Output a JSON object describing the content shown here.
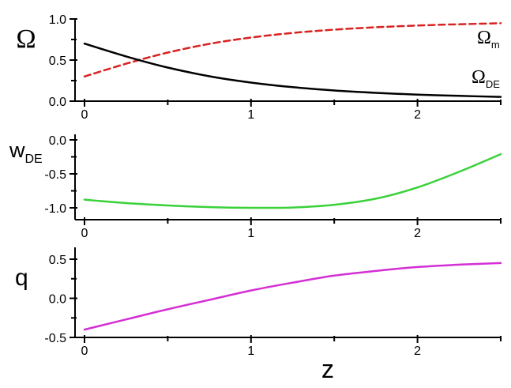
{
  "figure": {
    "background": "#ffffff",
    "axis_color": "#000000"
  },
  "xlabel": "z",
  "chart_data": [
    {
      "type": "line",
      "panel": "density-parameters",
      "ylabel": "Ω",
      "x": [
        0,
        0.25,
        0.5,
        0.75,
        1,
        1.25,
        1.5,
        1.75,
        2,
        2.25,
        2.5
      ],
      "series": [
        {
          "name": "Omega_m",
          "label_main": "Ω",
          "label_sub": "m",
          "color": "#d92121",
          "dash": "8 5",
          "values": [
            0.3,
            0.456,
            0.591,
            0.697,
            0.774,
            0.83,
            0.87,
            0.899,
            0.92,
            0.936,
            0.948
          ]
        },
        {
          "name": "Omega_DE",
          "label_main": "Ω",
          "label_sub": "DE",
          "color": "#000000",
          "dash": "",
          "values": [
            0.7,
            0.544,
            0.409,
            0.303,
            0.226,
            0.17,
            0.13,
            0.101,
            0.08,
            0.064,
            0.052
          ]
        }
      ],
      "ylim": [
        0,
        1
      ],
      "yticks": {
        "major": [
          0,
          0.5,
          1
        ],
        "labels": [
          "0.0",
          "0.5",
          "1.0"
        ],
        "minor": [
          0.25,
          0.75
        ]
      },
      "xticks": {
        "major": [
          0,
          1,
          2
        ],
        "labels": [
          "0",
          "1",
          "2"
        ],
        "minor": [
          0.5,
          1.5,
          2.5
        ]
      },
      "xlim": [
        0,
        2.5
      ],
      "grid": false,
      "legend": "inline annotations right"
    },
    {
      "type": "line",
      "panel": "equation-of-state",
      "ylabel_main": "w",
      "ylabel_sub": "DE",
      "x": [
        0,
        0.25,
        0.5,
        0.75,
        1,
        1.25,
        1.5,
        1.75,
        2,
        2.25,
        2.5
      ],
      "series": [
        {
          "name": "w_DE",
          "color": "#3ad13a",
          "dash": "",
          "values": [
            -0.88,
            -0.93,
            -0.965,
            -0.99,
            -1.0,
            -0.995,
            -0.955,
            -0.865,
            -0.7,
            -0.47,
            -0.21
          ]
        }
      ],
      "ylim": [
        -1.17,
        0.08
      ],
      "yticks": {
        "major": [
          0,
          -0.5,
          -1
        ],
        "labels": [
          "0.0",
          "-0.5",
          "-1.0"
        ],
        "minor": [
          -0.25,
          -0.75
        ]
      },
      "xticks": {
        "major": [
          0,
          1,
          2
        ],
        "labels": [
          "0",
          "1",
          "2"
        ],
        "minor": [
          0.5,
          1.5,
          2.5
        ]
      },
      "xlim": [
        0,
        2.5
      ],
      "grid": false
    },
    {
      "type": "line",
      "panel": "deceleration-parameter",
      "ylabel": "q",
      "x": [
        0,
        0.25,
        0.5,
        0.75,
        1,
        1.25,
        1.5,
        1.75,
        2,
        2.25,
        2.5
      ],
      "series": [
        {
          "name": "q",
          "color": "#d42fd4",
          "dash": "",
          "values": [
            -0.4,
            -0.27,
            -0.14,
            -0.02,
            0.1,
            0.2,
            0.29,
            0.35,
            0.4,
            0.43,
            0.45
          ]
        }
      ],
      "ylim": [
        -0.5,
        0.65
      ],
      "yticks": {
        "major": [
          0.5,
          0,
          -0.5
        ],
        "labels": [
          "0.5",
          "0.0",
          "-0.5"
        ],
        "minor": [
          0.25,
          -0.25
        ]
      },
      "xticks": {
        "major": [
          0,
          1,
          2
        ],
        "labels": [
          "0",
          "1",
          "2"
        ],
        "minor": [
          0.5,
          1.5,
          2.5
        ]
      },
      "xlim": [
        0,
        2.5
      ],
      "grid": false
    }
  ]
}
